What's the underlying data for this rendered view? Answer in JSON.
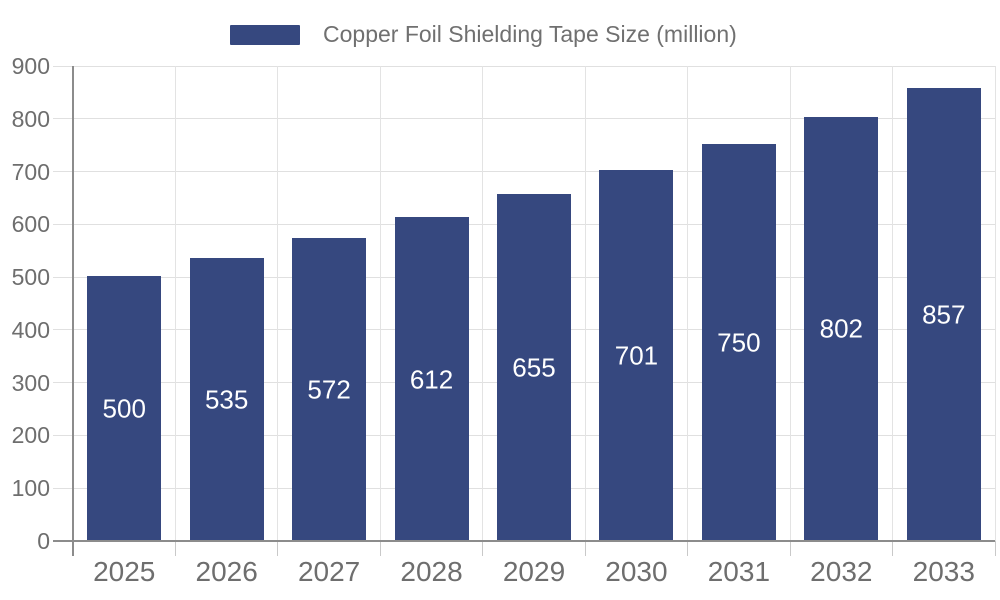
{
  "chart_data": {
    "type": "bar",
    "title": "Copper Foil Shielding Tape Size (million)",
    "categories": [
      "2025",
      "2026",
      "2027",
      "2028",
      "2029",
      "2030",
      "2031",
      "2032",
      "2033"
    ],
    "series": [
      {
        "name": "Copper Foil Shielding Tape Size (million)",
        "values": [
          500,
          535,
          572,
          612,
          655,
          701,
          750,
          802,
          857
        ]
      }
    ],
    "values": [
      500,
      535,
      572,
      612,
      655,
      701,
      750,
      802,
      857
    ],
    "value_labels_shown": true,
    "xlabel": "",
    "ylabel": "",
    "ylim": [
      0,
      900
    ],
    "ytick_interval": 100,
    "yticks": [
      0,
      100,
      200,
      300,
      400,
      500,
      600,
      700,
      800,
      900
    ],
    "grid": true,
    "legend_position": "top-center",
    "colors": {
      "bar": "#36487f",
      "value_label": "#ffffff",
      "axis_line": "#8c8c8c",
      "gridline": "#e0e0e0",
      "axis_text": "#6e6e6e",
      "legend_text": "#707070",
      "background": "#ffffff"
    }
  }
}
